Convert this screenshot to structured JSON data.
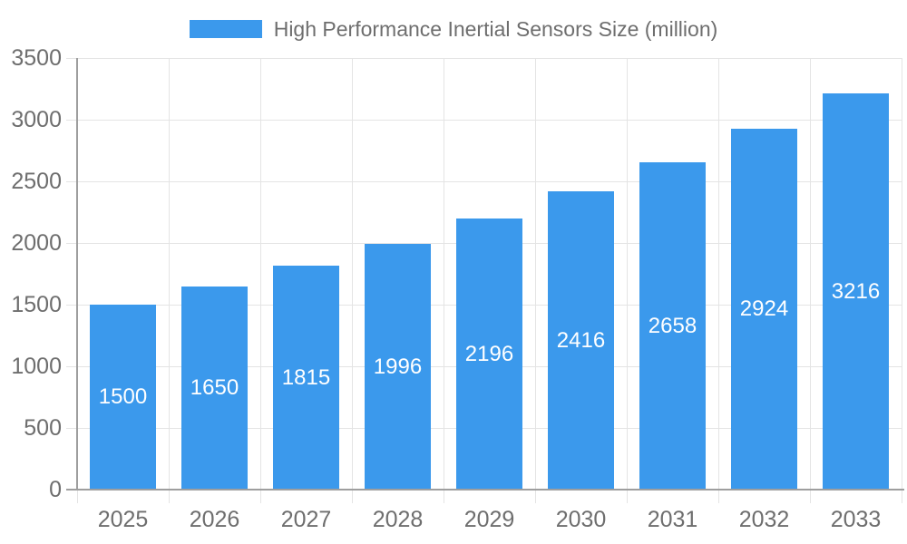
{
  "chart_data": {
    "type": "bar",
    "title": "",
    "xlabel": "",
    "ylabel": "",
    "legend": {
      "label": "High Performance Inertial Sensors Size (million)",
      "position": "top-center"
    },
    "categories": [
      "2025",
      "2026",
      "2027",
      "2028",
      "2029",
      "2030",
      "2031",
      "2032",
      "2033"
    ],
    "series": [
      {
        "name": "High Performance Inertial Sensors Size (million)",
        "values": [
          1500,
          1650,
          1815,
          1996,
          2196,
          2416,
          2658,
          2924,
          3216
        ]
      }
    ],
    "value_labels": [
      "1500",
      "1650",
      "1815",
      "1996",
      "2196",
      "2416",
      "2658",
      "2924",
      "3216"
    ],
    "ylim": [
      0,
      3500
    ],
    "ytick_step": 500,
    "yticks": [
      0,
      500,
      1000,
      1500,
      2000,
      2500,
      3000,
      3500
    ],
    "grid": true,
    "colors": {
      "bar": "#3B99EC",
      "value_label_text": "#FFFFFF",
      "axis_text": "#6E6E6E",
      "legend_text": "#6E6E6E",
      "gridline": "#E4E4E4",
      "axis_line": "#9E9E9E",
      "background": "#FFFFFF"
    }
  }
}
